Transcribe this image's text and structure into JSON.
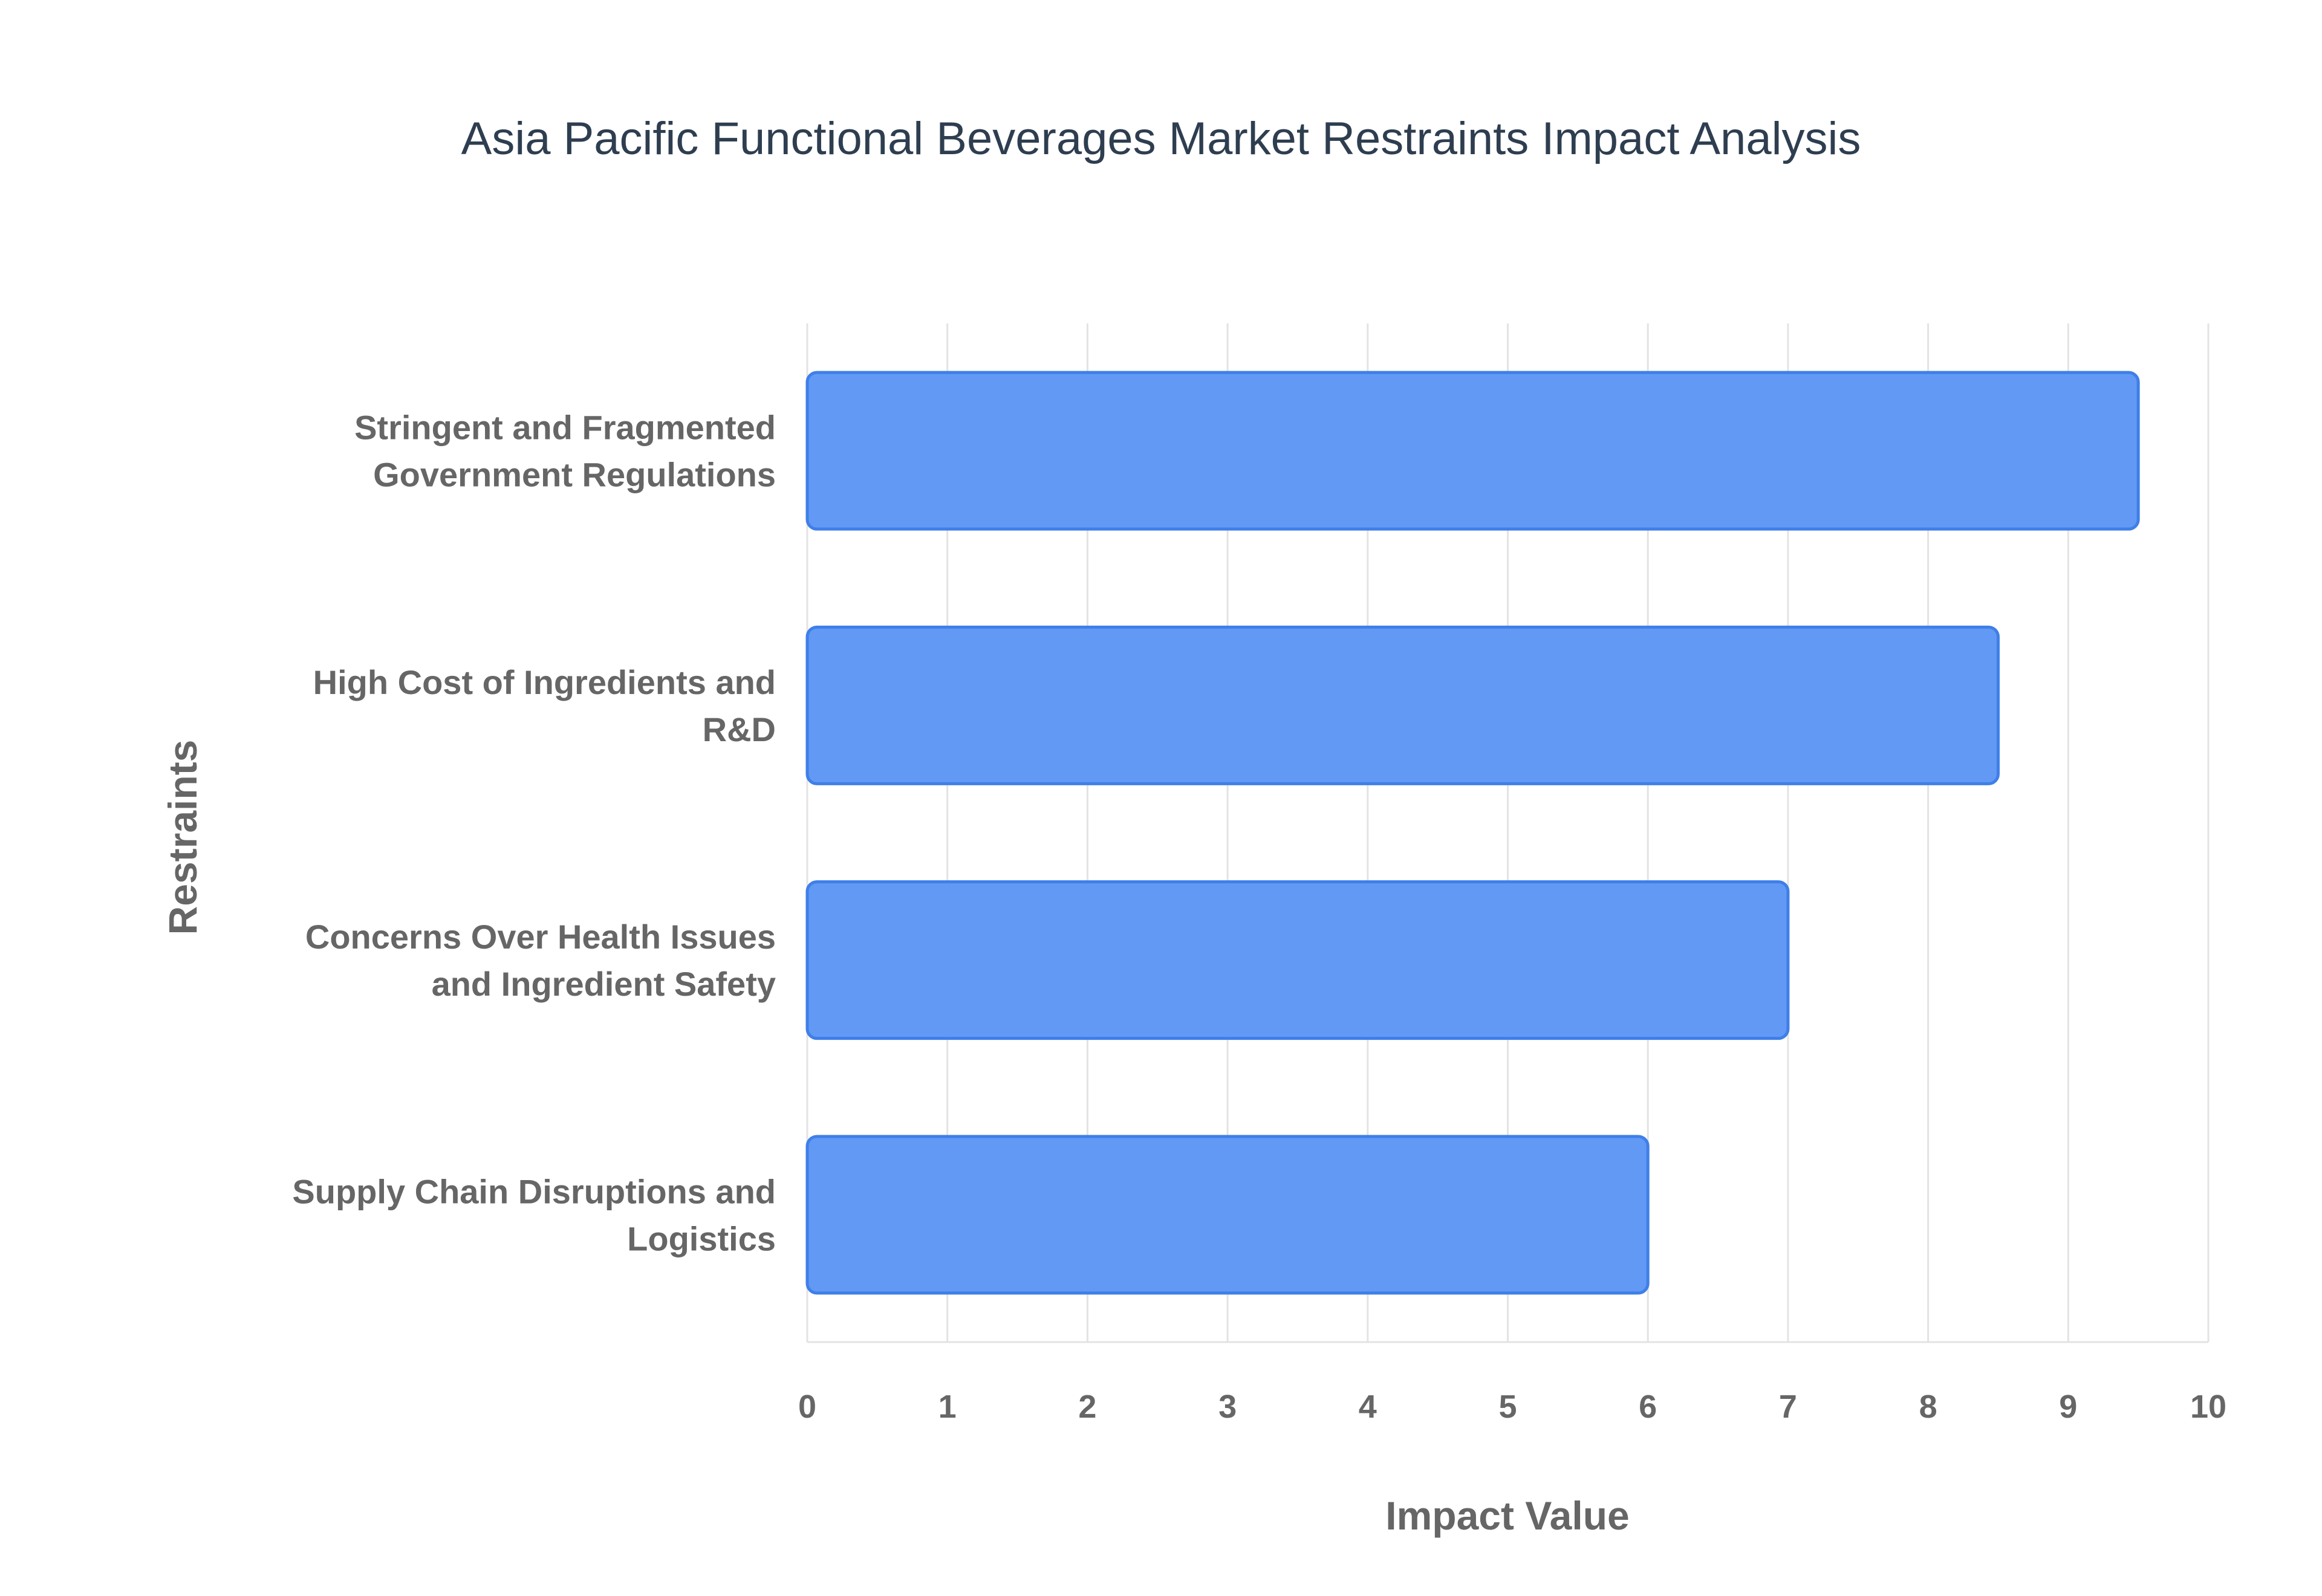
{
  "chart_data": {
    "type": "bar",
    "orientation": "horizontal",
    "title": "Asia Pacific Functional Beverages Market Restraints Impact Analysis",
    "xlabel": "Impact Value",
    "ylabel": "Restraints",
    "categories": [
      [
        "Stringent and Fragmented",
        "Government Regulations"
      ],
      [
        "High Cost of Ingredients and",
        "R&D"
      ],
      [
        "Concerns Over Health Issues",
        "and Ingredient Safety"
      ],
      [
        "Supply Chain Disruptions and",
        "Logistics"
      ]
    ],
    "values": [
      9.5,
      8.5,
      7,
      6
    ],
    "xlim": [
      0,
      10
    ],
    "xticks": [
      "0",
      "1",
      "2",
      "3",
      "4",
      "5",
      "6",
      "7",
      "8",
      "9",
      "10"
    ],
    "grid": true,
    "bar_color": "#6199f5",
    "bar_edge_color": "#3f7fe8"
  }
}
